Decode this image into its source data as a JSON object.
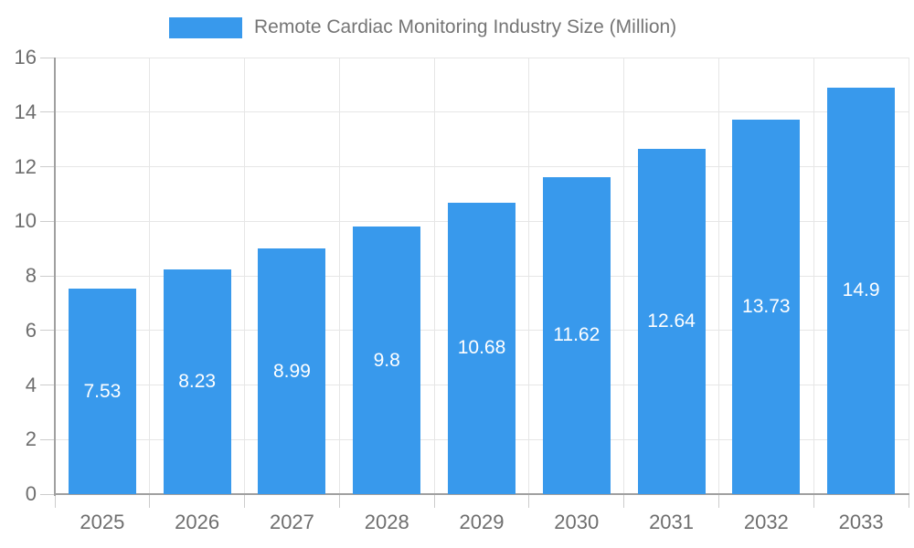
{
  "legend": {
    "label": "Remote Cardiac Monitoring Industry Size (Million)"
  },
  "chart_data": {
    "type": "bar",
    "title": "Remote Cardiac Monitoring Industry Size (Million)",
    "categories": [
      "2025",
      "2026",
      "2027",
      "2028",
      "2029",
      "2030",
      "2031",
      "2032",
      "2033"
    ],
    "values": [
      7.53,
      8.23,
      8.99,
      9.8,
      10.68,
      11.62,
      12.64,
      13.73,
      14.9
    ],
    "value_labels": [
      "7.53",
      "8.23",
      "8.99",
      "9.8",
      "10.68",
      "11.62",
      "12.64",
      "13.73",
      "14.9"
    ],
    "xlabel": "",
    "ylabel": "",
    "ylim": [
      0,
      16
    ],
    "yticks": [
      0,
      2,
      4,
      6,
      8,
      10,
      12,
      14,
      16
    ],
    "grid": true,
    "legend_position": "top",
    "colors": {
      "bar": "#3899EC",
      "value_label": "#ffffff",
      "grid": "#e6e6e6",
      "tick": "#cccccc",
      "axis": "#a0a0a0",
      "tick_label": "#6e6e6e",
      "legend_text": "#757575"
    }
  }
}
